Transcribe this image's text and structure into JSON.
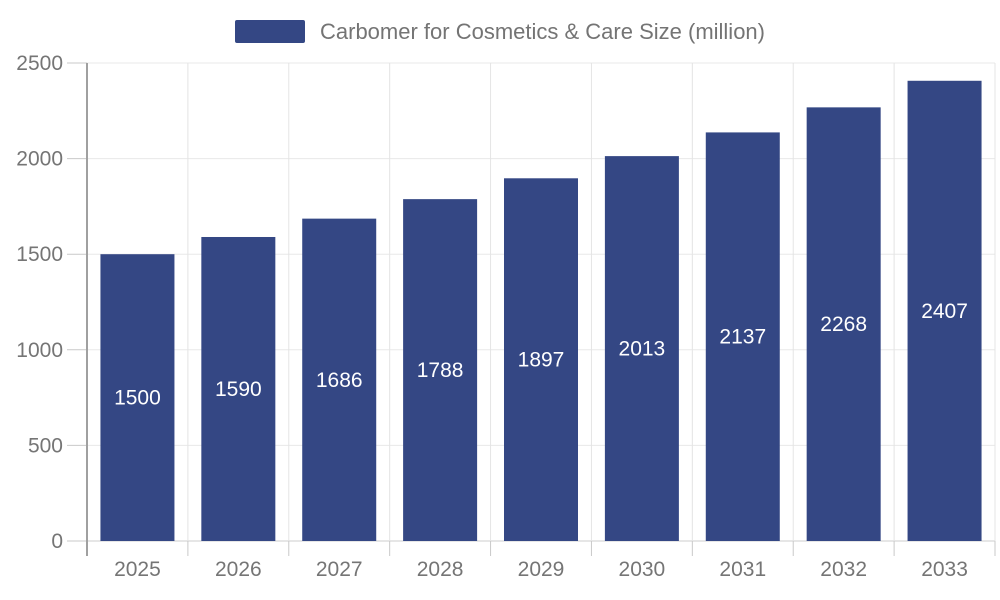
{
  "chart_data": {
    "type": "bar",
    "title": "Carbomer for Cosmetics & Care Size (million)",
    "series_name": "Carbomer for Cosmetics & Care Size (million)",
    "categories": [
      "2025",
      "2026",
      "2027",
      "2028",
      "2029",
      "2030",
      "2031",
      "2032",
      "2033"
    ],
    "values": [
      1500,
      1590,
      1686,
      1788,
      1897,
      2013,
      2137,
      2268,
      2407
    ],
    "value_labels": [
      "1500",
      "1590",
      "1686",
      "1788",
      "1897",
      "2013",
      "2137",
      "2268",
      "2407"
    ],
    "xlabel": "",
    "ylabel": "",
    "ylim": [
      0,
      2500
    ],
    "yticks": [
      0,
      500,
      1000,
      1500,
      2000,
      2500
    ],
    "ytick_labels": [
      "0",
      "500",
      "1000",
      "1500",
      "2000",
      "2500"
    ],
    "grid": true,
    "legend_position": "top-center",
    "bar_color": "#344784",
    "value_label_color": "#ffffff",
    "axis_text_color": "#757575",
    "legend_text_color": "#747474"
  }
}
